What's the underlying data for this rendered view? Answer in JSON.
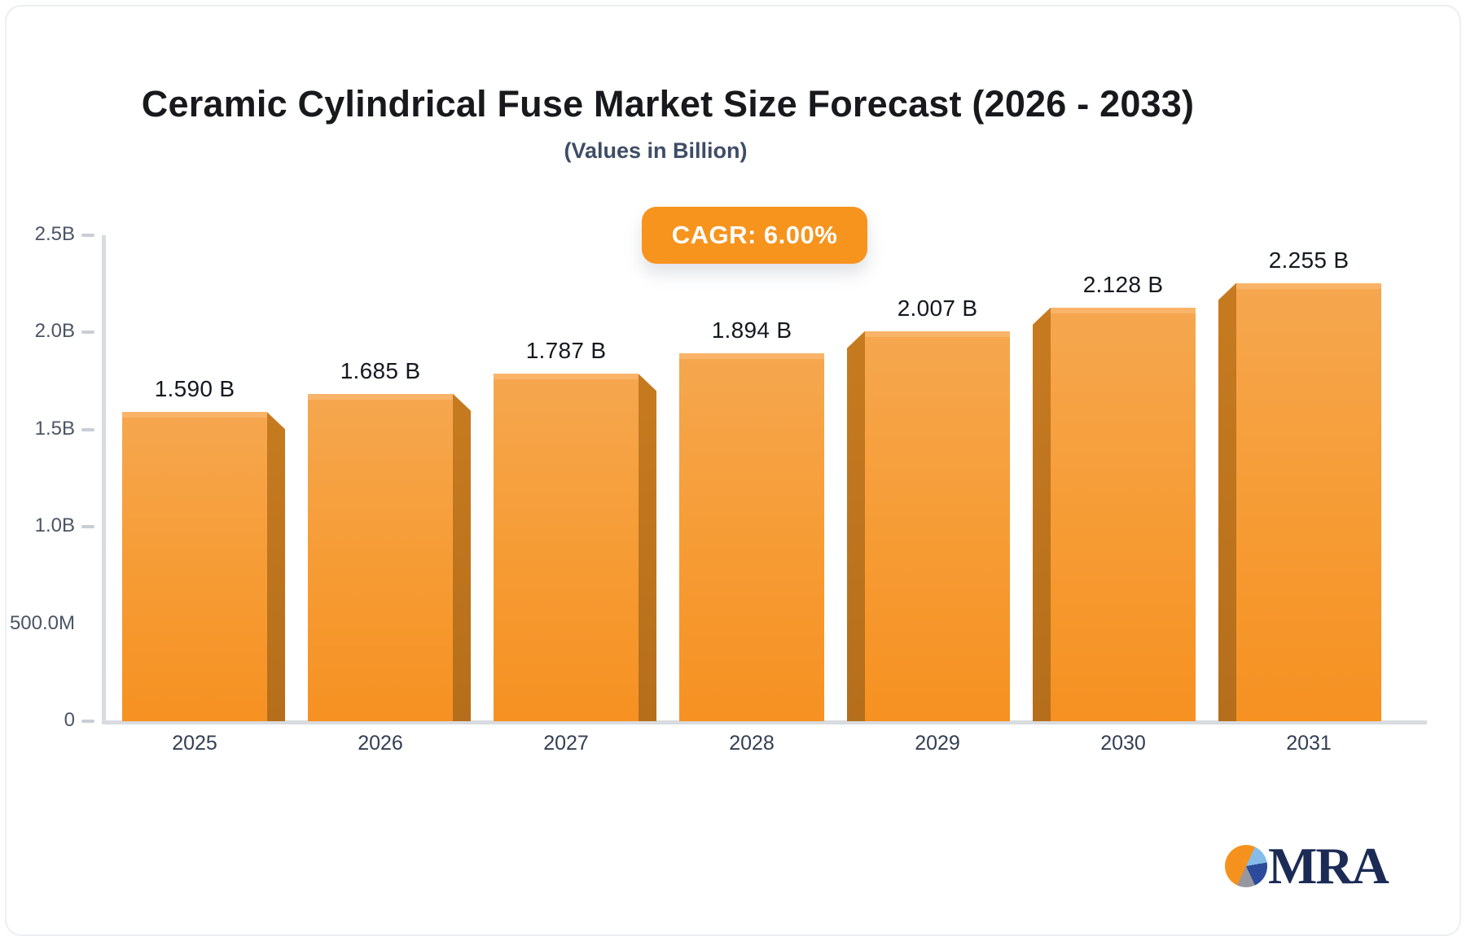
{
  "page": {
    "title": "Ceramic Cylindrical Fuse Market Size Forecast (2026 - 2033)",
    "subtitle": "(Values in Billion)",
    "cagr_label": "CAGR: 6.00%"
  },
  "logo": {
    "text": "MRA",
    "pie_segments": [
      {
        "color": "#F5921E",
        "from": 0,
        "to": 25
      },
      {
        "color": "#85BCEA",
        "from": 25,
        "to": 80
      },
      {
        "color": "#2C4B9B",
        "from": 80,
        "to": 155
      },
      {
        "color": "#97979F",
        "from": 155,
        "to": 205
      },
      {
        "color": "#F5921E",
        "from": 205,
        "to": 360
      }
    ]
  },
  "chart_data": {
    "type": "bar",
    "title": "Ceramic Cylindrical Fuse Market Size Forecast (2026 - 2033)",
    "subtitle": "(Values in Billion)",
    "annotation": "CAGR: 6.00%",
    "xlabel": "",
    "ylabel": "",
    "ylim": [
      0,
      2.5
    ],
    "grid": false,
    "legend": "none",
    "categories": [
      "2025",
      "2026",
      "2027",
      "2028",
      "2029",
      "2030",
      "2031"
    ],
    "values": [
      1.59,
      1.685,
      1.787,
      1.894,
      2.007,
      2.128,
      2.255
    ],
    "value_labels": [
      "1.590 B",
      "1.685 B",
      "1.787 B",
      "1.894 B",
      "2.007 B",
      "2.128 B",
      "2.255 B"
    ],
    "y_axis": [
      {
        "label": "2.5B",
        "value": 2.5,
        "tick": true
      },
      {
        "label": "2.0B",
        "value": 2.0,
        "tick": true
      },
      {
        "label": "1.5B",
        "value": 1.5,
        "tick": true
      },
      {
        "label": "1.0B",
        "value": 1.0,
        "tick": true
      },
      {
        "label": "500.0M",
        "value": 0.5,
        "tick": false
      },
      {
        "label": "0",
        "value": 0.0,
        "tick": true
      }
    ],
    "colors": {
      "bar_front_top": "#F5A74F",
      "bar_front_bottom": "#F69122",
      "bar_top_face": "#F9B469",
      "bar_side_face": "#BE741F",
      "axis_line": "#D8DBDF",
      "badge_background": "#F6941E",
      "badge_text": "#FFFFFF",
      "value_label_text": "#14181F",
      "tick_label_text": "#4B5564",
      "year_label_text": "#333F54"
    }
  }
}
